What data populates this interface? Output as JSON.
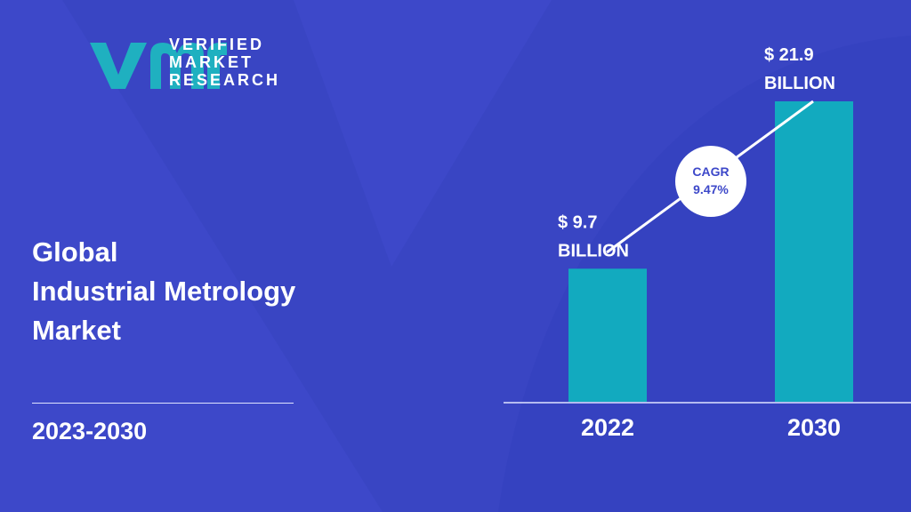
{
  "brand": {
    "line1": "VERIFIED",
    "line2": "MARKET",
    "line3": "RESEARCH",
    "logo_color": "#1fb0c0"
  },
  "title": {
    "line1": "Global",
    "line2": "Industrial Metrology",
    "line3": "Market"
  },
  "period": "2023-2030",
  "colors": {
    "background": "#3d48c9",
    "bar": "#12aabf",
    "text": "#ffffff",
    "cagr_text": "#3d48c9"
  },
  "chart_data": {
    "type": "bar",
    "categories": [
      "2022",
      "2030"
    ],
    "values": [
      9.7,
      21.9
    ],
    "value_labels": [
      [
        "$ 9.7",
        "BILLION"
      ],
      [
        "$ 21.9",
        "BILLION"
      ]
    ],
    "annotation": {
      "line1": "CAGR",
      "line2": "9.47%"
    },
    "ylim": [
      0,
      21.9
    ],
    "grid": false
  }
}
